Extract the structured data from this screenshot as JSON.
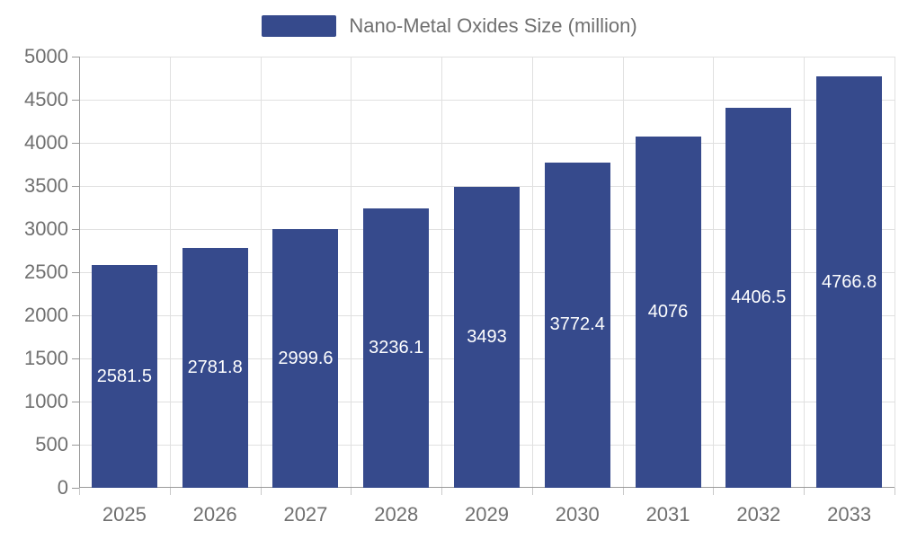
{
  "chart_data": {
    "type": "bar",
    "categories": [
      "2025",
      "2026",
      "2027",
      "2028",
      "2029",
      "2030",
      "2031",
      "2032",
      "2033"
    ],
    "series": [
      {
        "name": "Nano-Metal Oxides Size (million)",
        "values": [
          2581.5,
          2781.8,
          2999.6,
          3236.1,
          3493,
          3772.4,
          4076,
          4406.5,
          4766.8
        ]
      }
    ],
    "title": "",
    "xlabel": "",
    "ylabel": "",
    "ylim": [
      0,
      5000
    ],
    "ytick_step": 500,
    "yticks": [
      0,
      500,
      1000,
      1500,
      2000,
      2500,
      3000,
      3500,
      4000,
      4500,
      5000
    ],
    "grid": true,
    "legend_position": "top",
    "value_label_position": "inside-center",
    "bar_color": "#364A8C",
    "value_label_color": "#FFFFFF",
    "axis_label_color": "#707070",
    "axis_line_color": "#999999",
    "grid_color": "#E0E0E0",
    "x_tick_color": "#C9C9C9",
    "background_color": "#FFFFFF"
  }
}
